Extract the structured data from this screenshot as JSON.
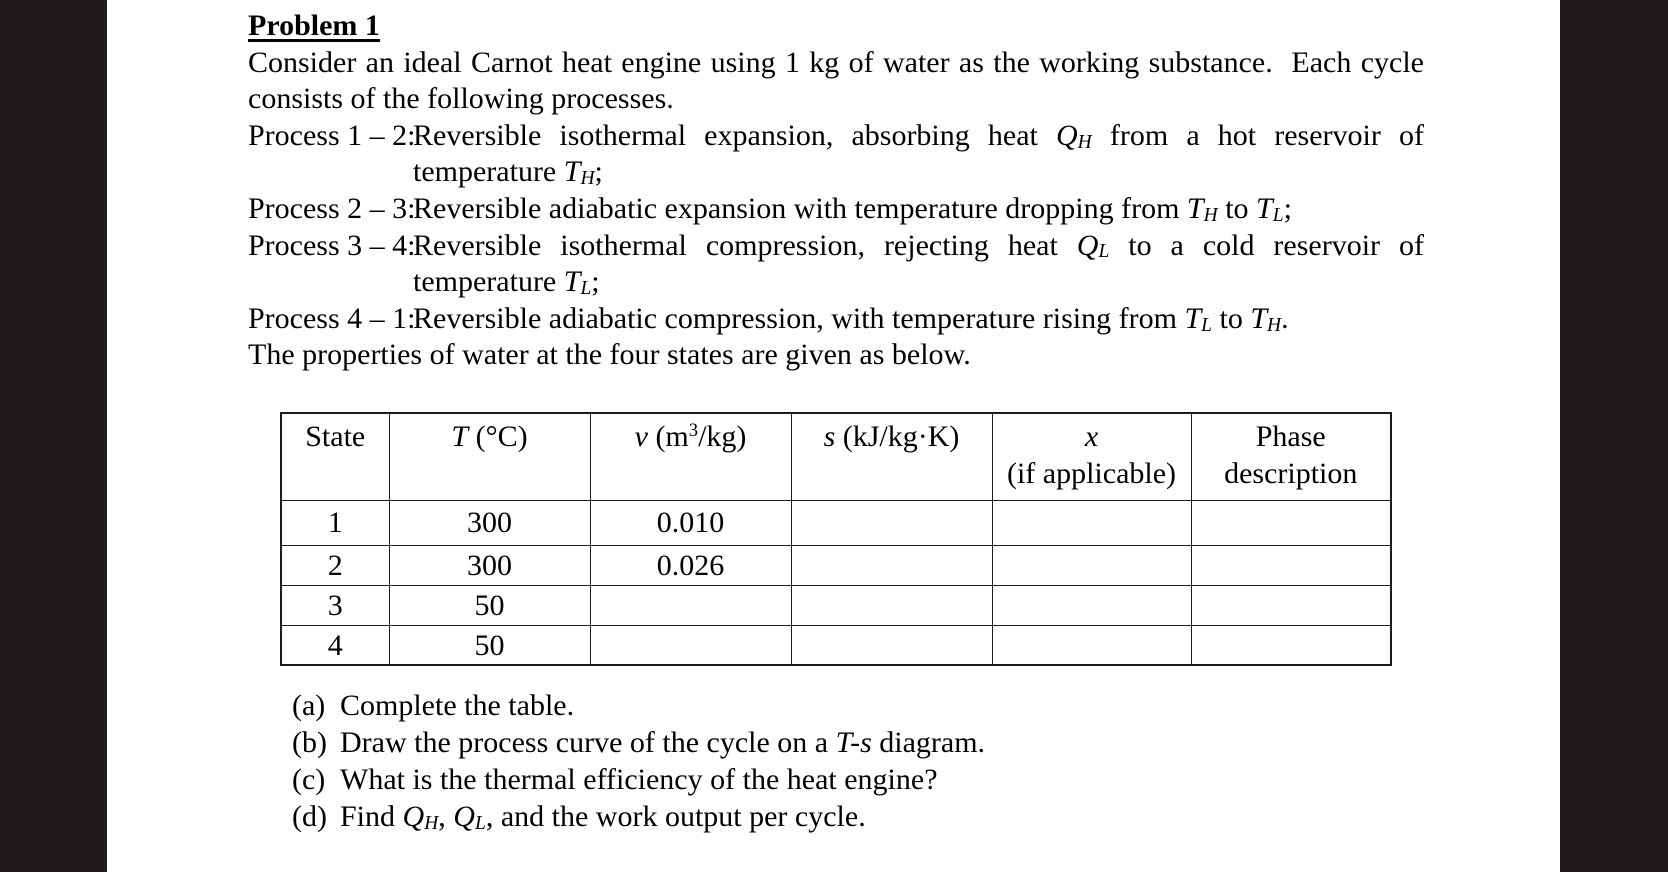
{
  "colors": {
    "letterbox": "#201b1b",
    "paper": "#ffffff",
    "text": "#000000",
    "table_border": "#1c1c1c"
  },
  "document": {
    "title": "Problem 1",
    "intro_lines": [
      [
        [
          "n",
          "Consider an ideal Carnot heat engine using 1 kg of water as the working substance.  Each cycle"
        ]
      ],
      [
        [
          "n",
          "consists of the following processes."
        ]
      ]
    ],
    "processes": [
      {
        "label": "Process 1 – 2:",
        "lines": [
          [
            [
              "n",
              "Reversible isothermal expansion, absorbing heat "
            ],
            [
              "i",
              "Q"
            ],
            [
              "s",
              "H"
            ],
            [
              "n",
              " from a hot reservoir of"
            ]
          ],
          [
            [
              "n",
              "temperature "
            ],
            [
              "i",
              "T"
            ],
            [
              "s",
              "H"
            ],
            [
              "n",
              ";"
            ]
          ]
        ]
      },
      {
        "label": "Process 2 – 3:",
        "lines": [
          [
            [
              "n",
              "Reversible adiabatic expansion with temperature dropping from "
            ],
            [
              "i",
              "T"
            ],
            [
              "s",
              "H"
            ],
            [
              "n",
              " to "
            ],
            [
              "i",
              "T"
            ],
            [
              "s",
              "L"
            ],
            [
              "n",
              ";"
            ]
          ]
        ]
      },
      {
        "label": "Process 3 – 4:",
        "lines": [
          [
            [
              "n",
              "Reversible isothermal compression, rejecting heat "
            ],
            [
              "i",
              "Q"
            ],
            [
              "s",
              "L"
            ],
            [
              "n",
              " to a cold reservoir of"
            ]
          ],
          [
            [
              "n",
              "temperature "
            ],
            [
              "i",
              "T"
            ],
            [
              "s",
              "L"
            ],
            [
              "n",
              ";"
            ]
          ]
        ]
      },
      {
        "label": "Process 4 – 1:",
        "lines": [
          [
            [
              "n",
              "Reversible adiabatic compression, with temperature rising from "
            ],
            [
              "i",
              "T"
            ],
            [
              "s",
              "L"
            ],
            [
              "n",
              " to "
            ],
            [
              "i",
              "T"
            ],
            [
              "s",
              "H"
            ],
            [
              "n",
              "."
            ]
          ]
        ]
      }
    ],
    "note": "The properties of water at the four states are given as below.",
    "table": {
      "headers": [
        {
          "line1": [
            [
              "n",
              "State"
            ]
          ],
          "line2": ""
        },
        {
          "line1": [
            [
              "i",
              "T"
            ],
            [
              "n",
              " (°C)"
            ]
          ],
          "line2": ""
        },
        {
          "line1": [
            [
              "i",
              "v"
            ],
            [
              "n",
              " (m"
            ],
            [
              "p",
              "3"
            ],
            [
              "n",
              "/kg)"
            ]
          ],
          "line2": ""
        },
        {
          "line1": [
            [
              "i",
              "s"
            ],
            [
              "n",
              " (kJ/kg·K)"
            ]
          ],
          "line2": ""
        },
        {
          "line1": [
            [
              "i",
              "x"
            ]
          ],
          "line2": "(if applicable)"
        },
        {
          "line1": [
            [
              "n",
              "Phase"
            ]
          ],
          "line2": "description"
        }
      ],
      "rows": [
        [
          "1",
          "300",
          "0.010",
          "",
          "",
          ""
        ],
        [
          "2",
          "300",
          "0.026",
          "",
          "",
          ""
        ],
        [
          "3",
          "50",
          "",
          "",
          "",
          ""
        ],
        [
          "4",
          "50",
          "",
          "",
          "",
          ""
        ]
      ]
    },
    "questions": [
      {
        "label": "(a)",
        "body": [
          [
            "n",
            "Complete the table."
          ]
        ]
      },
      {
        "label": "(b)",
        "body": [
          [
            "n",
            "Draw the process curve of the cycle on a "
          ],
          [
            "i",
            "T-s"
          ],
          [
            "n",
            " diagram."
          ]
        ]
      },
      {
        "label": "(c)",
        "body": [
          [
            "n",
            "What is the thermal efficiency of the heat engine?"
          ]
        ]
      },
      {
        "label": "(d)",
        "body": [
          [
            "n",
            "Find "
          ],
          [
            "i",
            "Q"
          ],
          [
            "s",
            "H"
          ],
          [
            "n",
            ", "
          ],
          [
            "i",
            "Q"
          ],
          [
            "s",
            "L"
          ],
          [
            "n",
            ", and the work output per cycle."
          ]
        ]
      }
    ]
  }
}
